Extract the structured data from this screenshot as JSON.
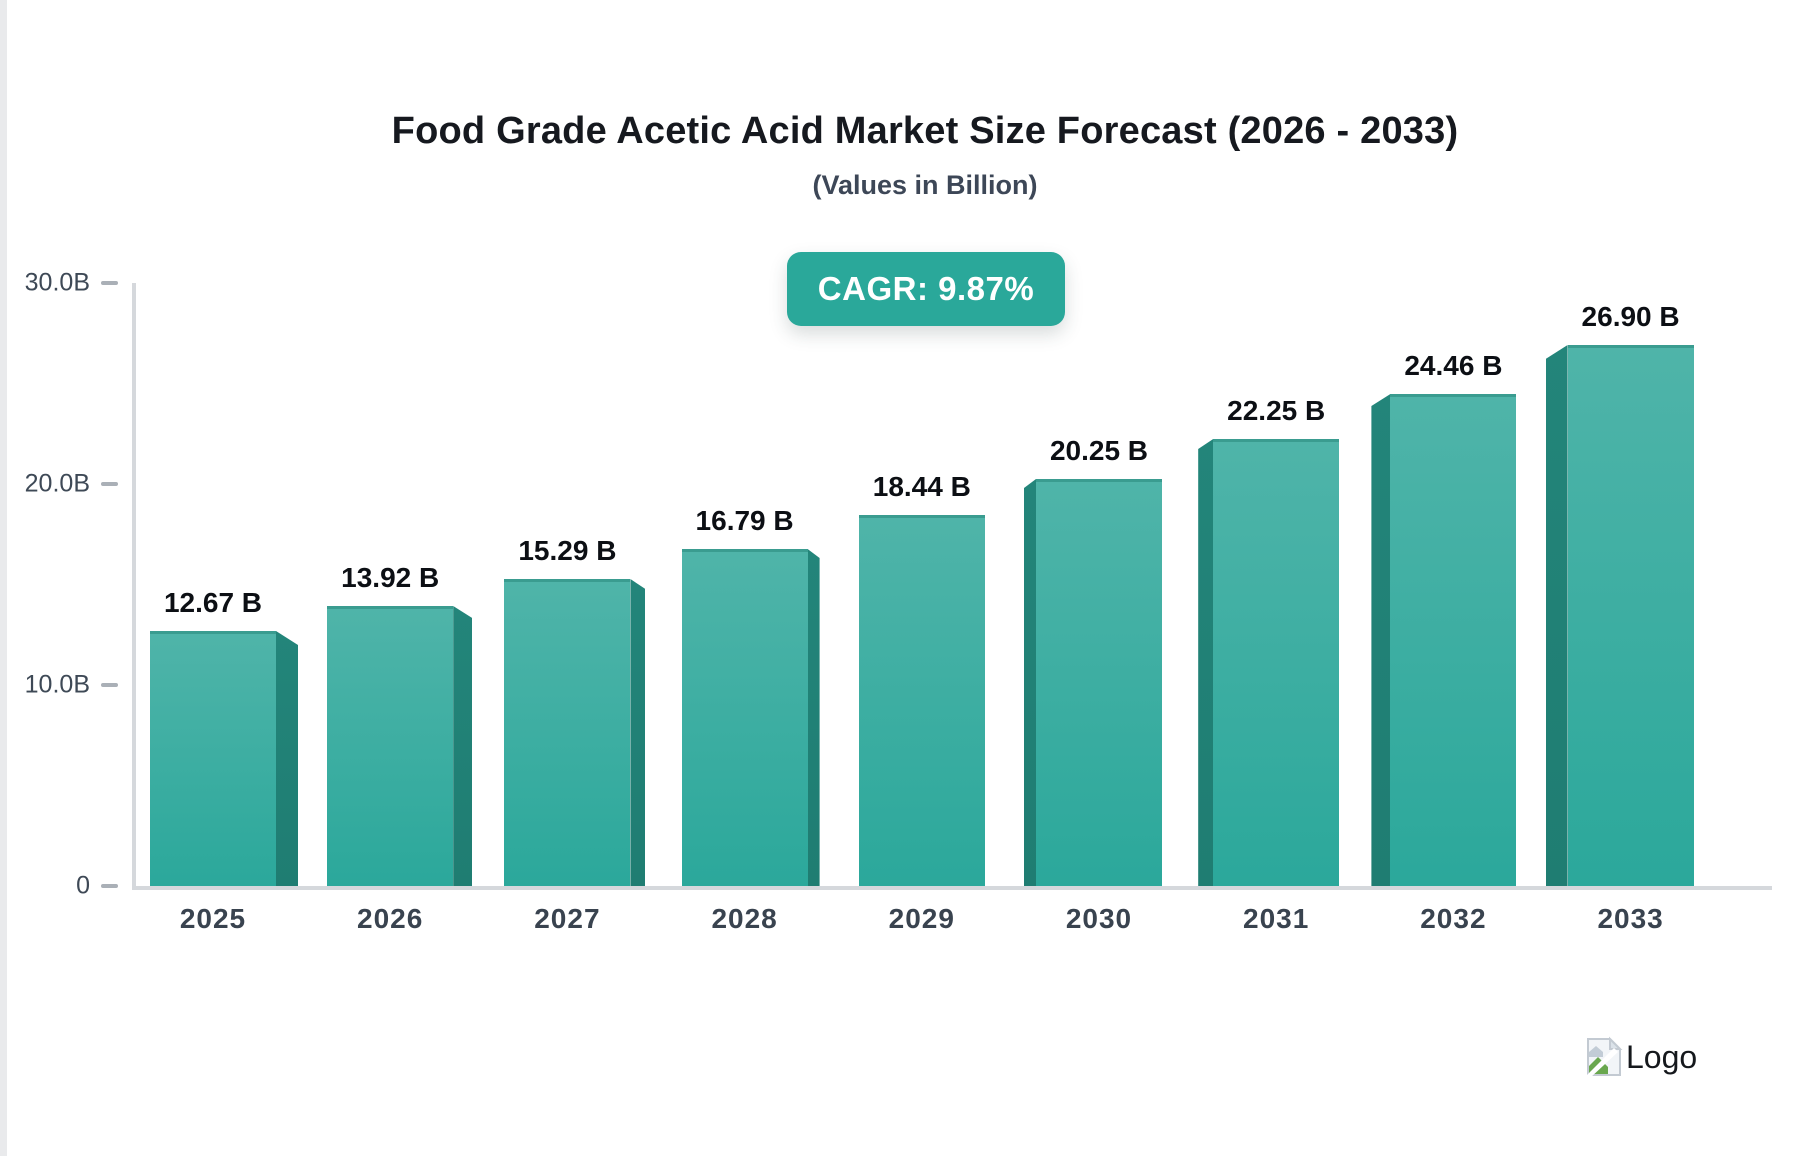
{
  "chart_data": {
    "type": "bar",
    "title": "Food Grade Acetic Acid Market Size Forecast (2026 - 2033)",
    "subtitle": "(Values in Billion)",
    "cagr_badge": "CAGR: 9.87%",
    "categories": [
      "2025",
      "2026",
      "2027",
      "2028",
      "2029",
      "2030",
      "2031",
      "2032",
      "2033"
    ],
    "values": [
      12.67,
      13.92,
      15.29,
      16.79,
      18.44,
      20.25,
      22.25,
      24.46,
      26.9
    ],
    "bar_labels": [
      "12.67 B",
      "13.92 B",
      "15.29 B",
      "16.79 B",
      "18.44 B",
      "20.25 B",
      "22.25 B",
      "24.46 B",
      "26.90 B"
    ],
    "yticks": [
      {
        "value": 0,
        "label": "0"
      },
      {
        "value": 10,
        "label": "10.0B"
      },
      {
        "value": 20,
        "label": "20.0B"
      },
      {
        "value": 30,
        "label": "30.0B"
      }
    ],
    "ylim": [
      0,
      30
    ],
    "grid": false,
    "legend": "none",
    "colors": {
      "accent": "#2aa89a",
      "bar_top": "#4fb4a9",
      "bar_bottom": "#2ba89b",
      "bar_side": "#1f7d72",
      "bar_edge": "#3a9c90",
      "axis_line": "#d5d8dc",
      "tick": "#aab0b7",
      "axis_text": "#3e4956",
      "title_text": "#16191f",
      "subtitle_text": "#3d4757"
    }
  },
  "footer": {
    "logo_alt": "Logo"
  }
}
